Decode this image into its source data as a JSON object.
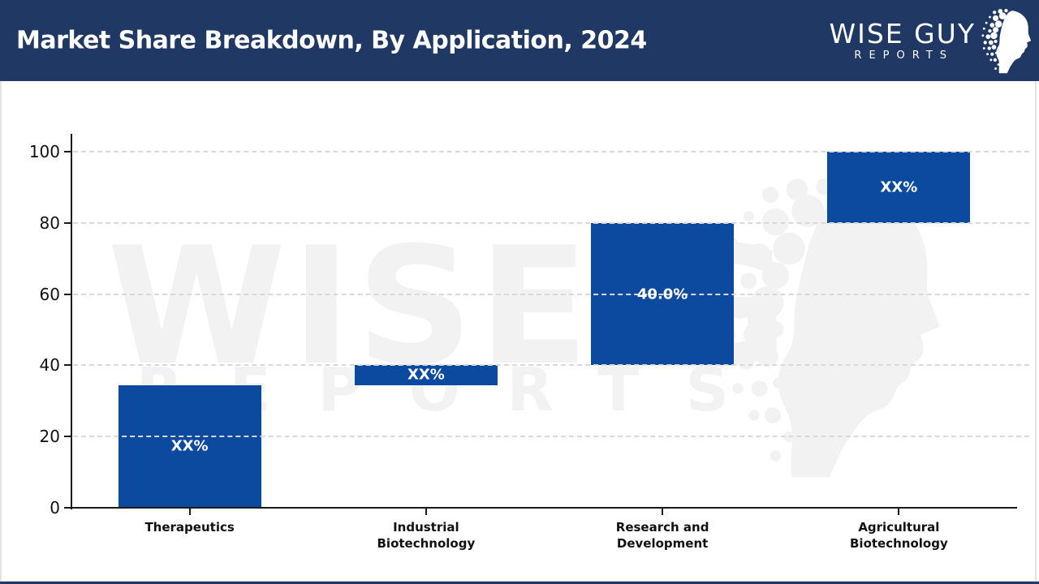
{
  "header": {
    "title": "Market Share Breakdown, By Application, 2024",
    "logo": {
      "line1": "WISE GUY",
      "line2": "REPORTS"
    }
  },
  "watermark": {
    "line1": "WISE GU",
    "line2": "REPORTS"
  },
  "footer": {},
  "chart_data": {
    "type": "bar",
    "subtype": "waterfall-floating-bars",
    "title": "Market Share Breakdown, By Application, 2024",
    "xlabel": "",
    "ylabel": "",
    "ylim": [
      0,
      100
    ],
    "yticks": [
      0,
      20,
      40,
      60,
      80,
      100
    ],
    "grid": "horizontal-dashed",
    "legend": "none",
    "bar_color": "#0b4a9e",
    "label_color": "#ffffff",
    "categories": [
      "Therapeutics",
      "Industrial Biotechnology",
      "Research and Development",
      "Agricultural Biotechnology"
    ],
    "category_lines": [
      [
        "Therapeutics"
      ],
      [
        "Industrial",
        "Biotechnology"
      ],
      [
        "Research and",
        "Development"
      ],
      [
        "Agricultural",
        "Biotechnology"
      ]
    ],
    "segments": [
      {
        "category": "Therapeutics",
        "start": 0,
        "end": 34.5,
        "label": "XX%"
      },
      {
        "category": "Industrial Biotechnology",
        "start": 34.5,
        "end": 40,
        "label": "XX%"
      },
      {
        "category": "Research and Development",
        "start": 40,
        "end": 80,
        "label": "40.0%"
      },
      {
        "category": "Agricultural Biotechnology",
        "start": 80,
        "end": 100,
        "label": "XX%"
      }
    ]
  },
  "colors": {
    "header_bg": "#203864",
    "bar": "#0b4a9e",
    "axis": "#1a1a1a",
    "grid": "#d9d9d9",
    "watermark": "#f2f2f2"
  }
}
